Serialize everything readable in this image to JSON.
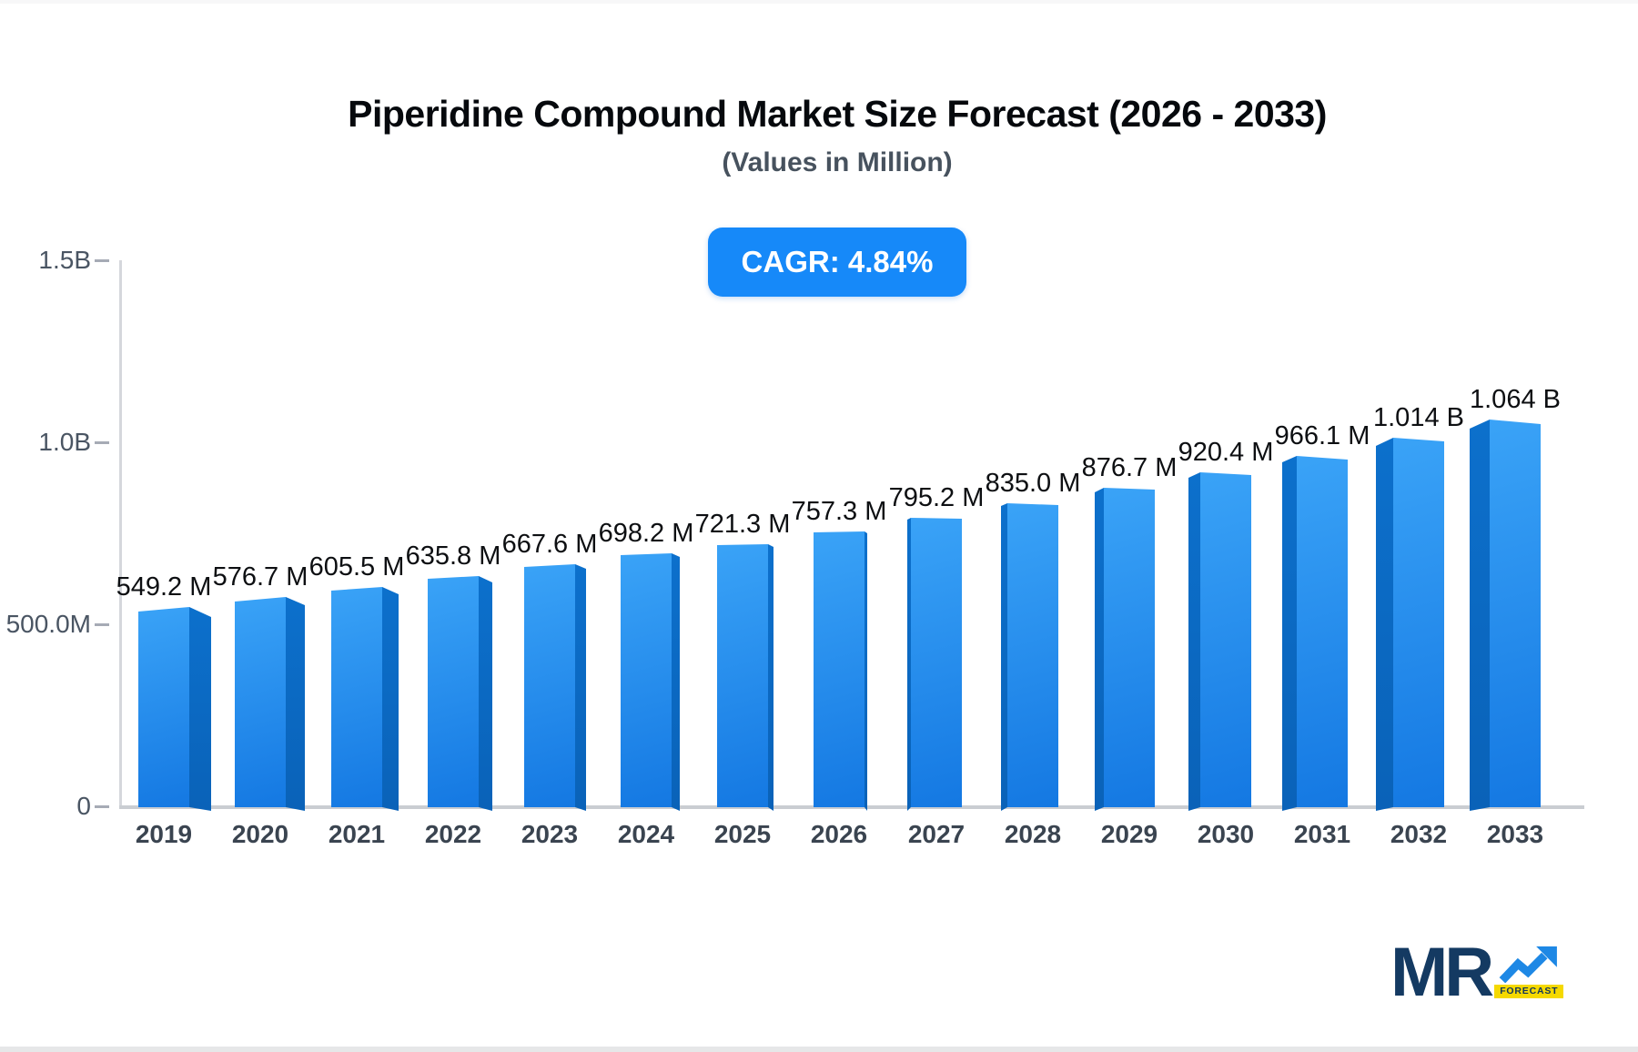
{
  "chart_data": {
    "type": "bar",
    "title": "Piperidine Compound Market Size Forecast (2026 - 2033)",
    "subtitle": "(Values in Million)",
    "cagr_label": "CAGR: 4.84%",
    "categories": [
      "2019",
      "2020",
      "2021",
      "2022",
      "2023",
      "2024",
      "2025",
      "2026",
      "2027",
      "2028",
      "2029",
      "2030",
      "2031",
      "2032",
      "2033"
    ],
    "values_millions": [
      549.2,
      576.7,
      605.5,
      635.8,
      667.6,
      698.2,
      721.3,
      757.3,
      795.2,
      835.0,
      876.7,
      920.4,
      966.1,
      1014,
      1064
    ],
    "value_labels": [
      "549.2 M",
      "576.7 M",
      "605.5 M",
      "635.8 M",
      "667.6 M",
      "698.2 M",
      "721.3 M",
      "757.3 M",
      "795.2 M",
      "835.0 M",
      "876.7 M",
      "920.4 M",
      "966.1 M",
      "1.014 B",
      "1.064 B"
    ],
    "y_ticks": [
      {
        "label": "1.5B",
        "millions": 1500
      },
      {
        "label": "1.0B",
        "millions": 1000
      },
      {
        "label": "500.0M",
        "millions": 500
      },
      {
        "label": "0",
        "millions": 0
      }
    ],
    "ylim_millions": [
      0,
      1500
    ],
    "grid": false,
    "legend": false,
    "bar_style": "3d-perspective-center-vanishing"
  },
  "logo": {
    "text": "MR",
    "sub": "FORECAST"
  },
  "colors": {
    "bar_front_top": "#3aa3f7",
    "bar_front_bottom": "#1478e2",
    "bar_side_top": "#0c70cc",
    "bar_side_bottom": "#0a62b8",
    "badge_bg": "#1689f9",
    "badge_text": "#ffffff",
    "title_text": "#06090d",
    "subtitle_text": "#47525e",
    "value_label_text": "#0d0f12",
    "year_label_text": "#3a4450",
    "ytick_label_text": "#4a5563",
    "y_axis_line": "#d5d7dc",
    "x_axis_line": "#cacdd2",
    "tick_dash": "#a6abb5",
    "logo_navy": "#143a62",
    "logo_arrow_blue": "#1e88e5",
    "logo_yellow": "#f5d900"
  }
}
